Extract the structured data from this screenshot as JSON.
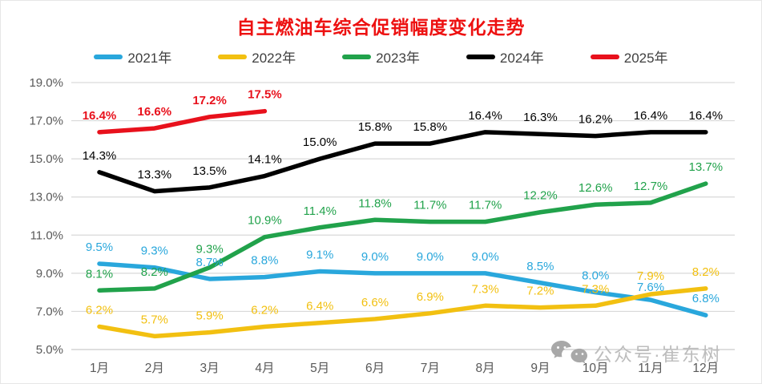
{
  "chart_data": {
    "type": "line",
    "title": "自主燃油车综合促销幅度变化走势",
    "categories": [
      "1月",
      "2月",
      "3月",
      "4月",
      "5月",
      "6月",
      "7月",
      "8月",
      "9月",
      "10月",
      "11月",
      "12月"
    ],
    "series": [
      {
        "name": "2021年",
        "color": "#29A7DC",
        "values": [
          9.5,
          9.3,
          8.7,
          8.8,
          9.1,
          9.0,
          9.0,
          9.0,
          8.5,
          8.0,
          7.6,
          6.8
        ],
        "label_bold": false
      },
      {
        "name": "2022年",
        "color": "#F2C011",
        "values": [
          6.2,
          5.7,
          5.9,
          6.2,
          6.4,
          6.6,
          6.9,
          7.3,
          7.2,
          7.3,
          7.9,
          8.2
        ],
        "label_bold": false
      },
      {
        "name": "2023年",
        "color": "#21A24B",
        "values": [
          8.1,
          8.2,
          9.3,
          10.9,
          11.4,
          11.8,
          11.7,
          11.7,
          12.2,
          12.6,
          12.7,
          13.7
        ],
        "label_bold": false
      },
      {
        "name": "2024年",
        "color": "#000000",
        "values": [
          14.3,
          13.3,
          13.5,
          14.1,
          15.0,
          15.8,
          15.8,
          16.4,
          16.3,
          16.2,
          16.4,
          16.4
        ],
        "label_bold": false
      },
      {
        "name": "2025年",
        "color": "#E8111C",
        "values": [
          16.4,
          16.6,
          17.2,
          17.5
        ],
        "label_bold": true
      }
    ],
    "ylim": [
      5,
      19
    ],
    "ytick_step": 2,
    "ytick_labels": [
      "5.0%",
      "7.0%",
      "9.0%",
      "11.0%",
      "13.0%",
      "15.0%",
      "17.0%",
      "19.0%"
    ],
    "xlabel": "",
    "ylabel": "",
    "grid": "horizontal",
    "legend_position": "top",
    "data_label_format": "0.0%"
  },
  "watermark": {
    "text": "公众号·崔东树",
    "icon": "wechat-icon"
  },
  "colors": {
    "title": "#ED1111",
    "axis_text": "#595959",
    "gridline": "#D9D9D9",
    "baseline": "#C9C9C9",
    "legend_text": "#404040",
    "watermark_text": "#BDBDBD",
    "watermark_icon": "#A8A8A8"
  }
}
